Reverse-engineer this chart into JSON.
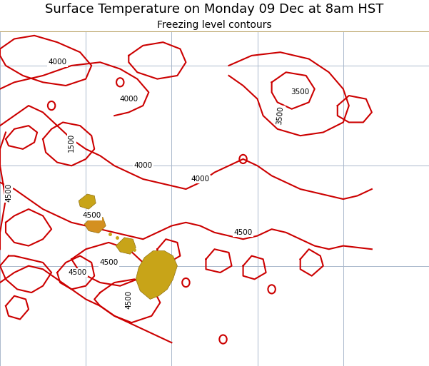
{
  "title": "Surface Temperature on Monday 09 Dec at 8am HST",
  "subtitle": "Freezing level contours",
  "bg_ocean": "#ccd8ed",
  "contour_color": "#cc0000",
  "title_fontsize": 13,
  "subtitle_fontsize": 10,
  "header_bg": "#ffffff",
  "header_border": "#b8a060",
  "grid_color": "#aab8cc",
  "map_xlim": [
    155.0,
    170.0
  ],
  "map_ylim": [
    17.0,
    27.0
  ],
  "figsize": [
    6.01,
    5.13
  ],
  "dpi": 100
}
